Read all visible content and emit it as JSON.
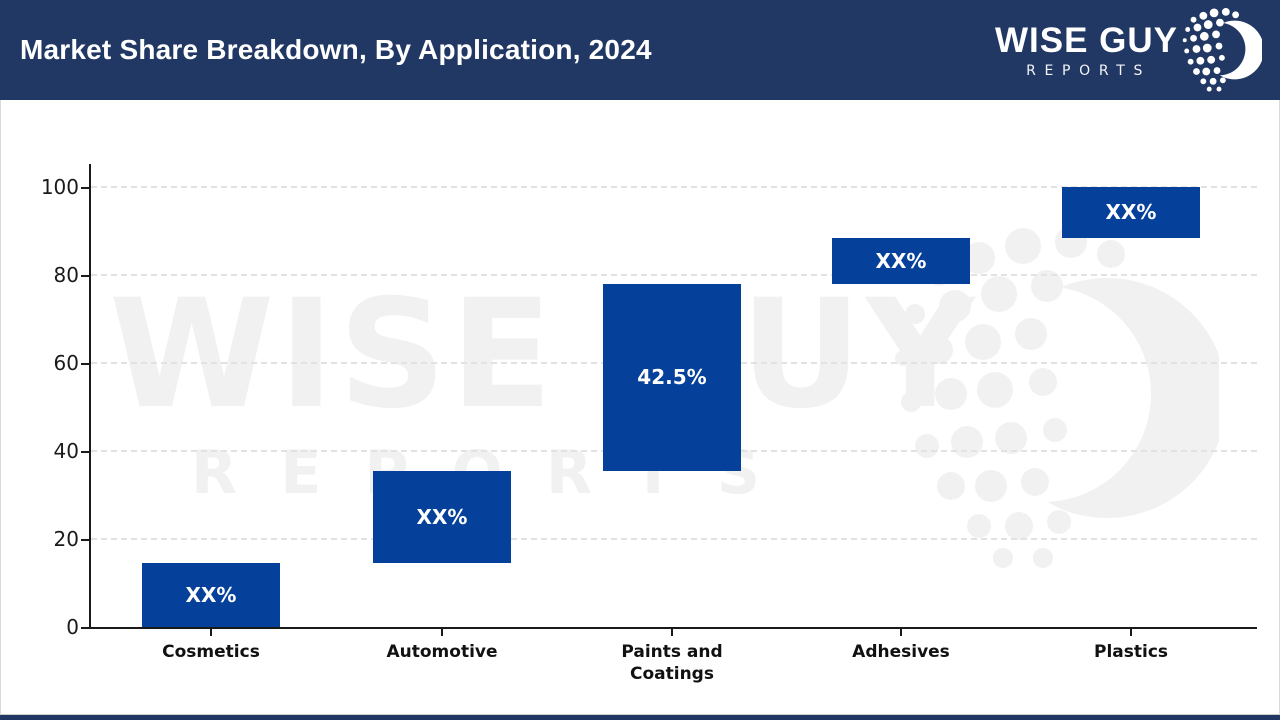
{
  "header": {
    "title": "Market Share Breakdown, By Application, 2024",
    "brand": {
      "name": "WISE GUY",
      "subtitle": "REPORTS"
    }
  },
  "watermark": {
    "line1": "WISE GUY",
    "line2": "REPORTS"
  },
  "colors": {
    "header_bg": "#213864",
    "bar": "#05409a",
    "grid": "#e2e2e2",
    "axis": "#1a1a1a",
    "bar_label": "#ffffff",
    "watermark": "#f1f1f2"
  },
  "chart_data": {
    "type": "bar",
    "subtype": "waterfall-floating-bars",
    "title": "Market Share Breakdown, By Application, 2024",
    "xlabel": "",
    "ylabel": "",
    "categories": [
      "Cosmetics",
      "Automotive",
      "Paints and Coatings",
      "Adhesives",
      "Plastics"
    ],
    "segments": [
      {
        "category": "Cosmetics",
        "start": 0,
        "end": 14.5,
        "value_label": "XX%"
      },
      {
        "category": "Automotive",
        "start": 14.5,
        "end": 35.5,
        "value_label": "XX%"
      },
      {
        "category": "Paints and Coatings",
        "start": 35.5,
        "end": 78,
        "value_label": "42.5%"
      },
      {
        "category": "Adhesives",
        "start": 78,
        "end": 88.5,
        "value_label": "XX%"
      },
      {
        "category": "Plastics",
        "start": 88.5,
        "end": 100,
        "value_label": "XX%"
      }
    ],
    "ylim": [
      0,
      100
    ],
    "yticks": [
      0,
      20,
      40,
      60,
      80,
      100
    ],
    "grid": "horizontal-dashed",
    "legend": "none",
    "bar_color": "#05409a"
  }
}
